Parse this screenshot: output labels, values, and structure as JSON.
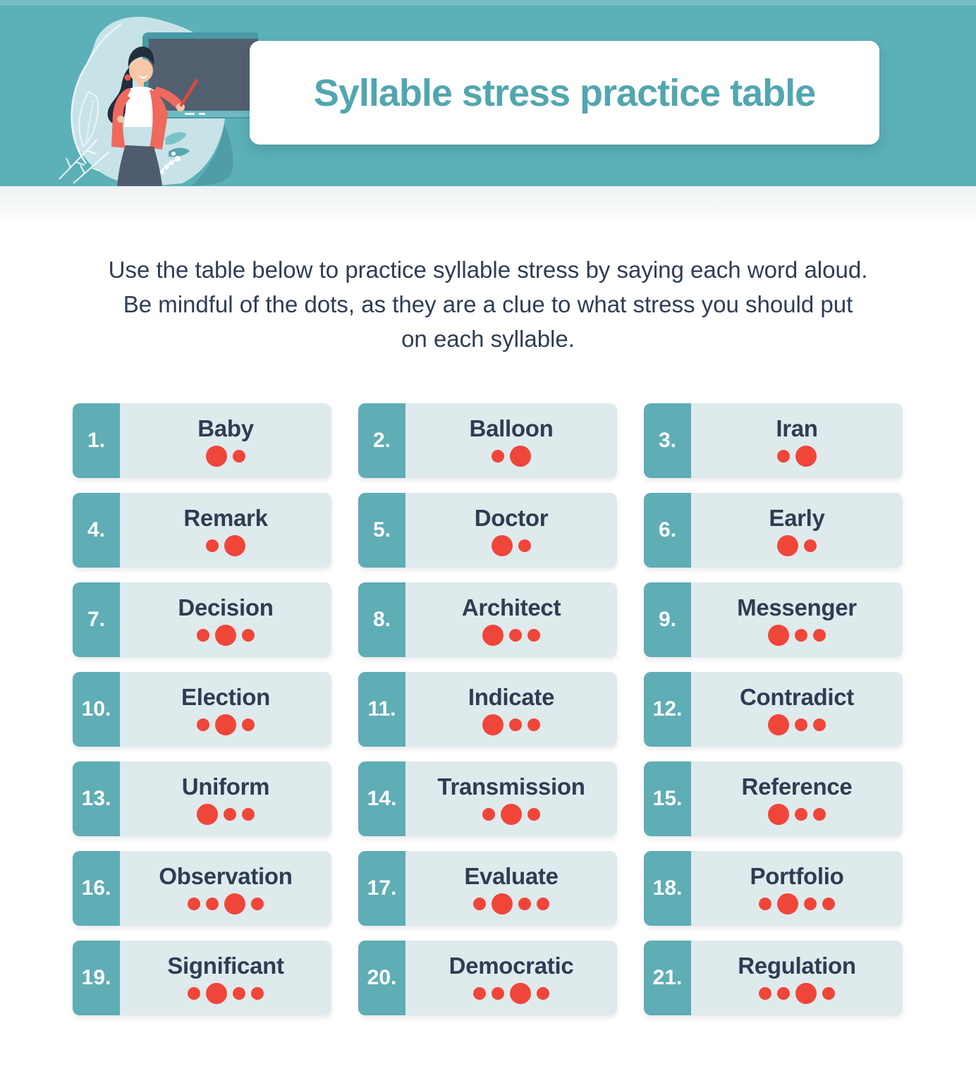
{
  "header": {
    "title": "Syllable stress practice table",
    "illustration": "teacher-pointing-at-blackboard"
  },
  "intro": {
    "lines": [
      "Use the table below to practice syllable stress by saying each word aloud.",
      "Be mindful of the dots, as they are a clue to what stress you should put",
      "on each syllable."
    ]
  },
  "table": {
    "items": [
      {
        "number": "1.",
        "word": "Baby",
        "stress": [
          1,
          0
        ]
      },
      {
        "number": "2.",
        "word": "Balloon",
        "stress": [
          0,
          1
        ]
      },
      {
        "number": "3.",
        "word": "Iran",
        "stress": [
          0,
          1
        ]
      },
      {
        "number": "4.",
        "word": "Remark",
        "stress": [
          0,
          1
        ]
      },
      {
        "number": "5.",
        "word": "Doctor",
        "stress": [
          1,
          0
        ]
      },
      {
        "number": "6.",
        "word": "Early",
        "stress": [
          1,
          0
        ]
      },
      {
        "number": "7.",
        "word": "Decision",
        "stress": [
          0,
          1,
          0
        ]
      },
      {
        "number": "8.",
        "word": "Architect",
        "stress": [
          1,
          0,
          0
        ]
      },
      {
        "number": "9.",
        "word": "Messenger",
        "stress": [
          1,
          0,
          0
        ]
      },
      {
        "number": "10.",
        "word": "Election",
        "stress": [
          0,
          1,
          0
        ]
      },
      {
        "number": "11.",
        "word": "Indicate",
        "stress": [
          1,
          0,
          0
        ]
      },
      {
        "number": "12.",
        "word": "Contradict",
        "stress": [
          1,
          0,
          0
        ]
      },
      {
        "number": "13.",
        "word": "Uniform",
        "stress": [
          1,
          0,
          0
        ]
      },
      {
        "number": "14.",
        "word": "Transmission",
        "stress": [
          0,
          1,
          0
        ]
      },
      {
        "number": "15.",
        "word": "Reference",
        "stress": [
          1,
          0,
          0
        ]
      },
      {
        "number": "16.",
        "word": "Observation",
        "stress": [
          0,
          0,
          1,
          0
        ]
      },
      {
        "number": "17.",
        "word": "Evaluate",
        "stress": [
          0,
          1,
          0,
          0
        ]
      },
      {
        "number": "18.",
        "word": "Portfolio",
        "stress": [
          0,
          1,
          0,
          0
        ]
      },
      {
        "number": "19.",
        "word": "Significant",
        "stress": [
          0,
          1,
          0,
          0
        ]
      },
      {
        "number": "20.",
        "word": "Democratic",
        "stress": [
          0,
          0,
          1,
          0
        ]
      },
      {
        "number": "21.",
        "word": "Regulation",
        "stress": [
          0,
          0,
          1,
          0
        ]
      }
    ]
  },
  "colors": {
    "teal": "#5cb0b8",
    "tab_teal": "#5fadb5",
    "card_bg": "#dfeaed",
    "dot_red": "#ef4639",
    "text_navy": "#2e3d52",
    "title_teal": "#52a6af"
  }
}
